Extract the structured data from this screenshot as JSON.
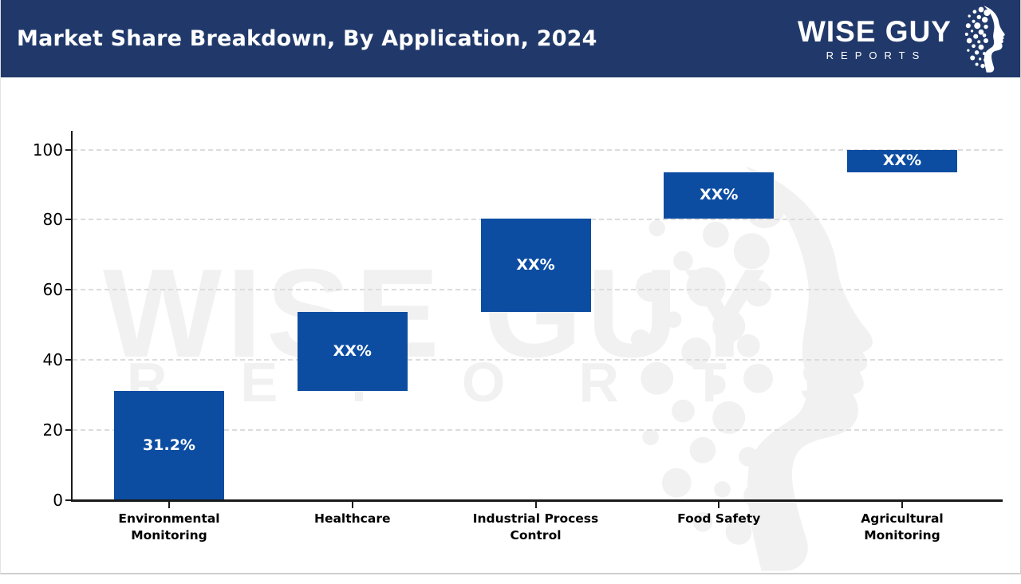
{
  "header": {
    "title": "Market Share Breakdown, By Application, 2024",
    "logo": {
      "wordmark": "WISE GUY",
      "subtext": "REPORTS"
    }
  },
  "watermark": {
    "wordmark": "WISE GUY",
    "subtext": "REPORTS"
  },
  "chart_data": {
    "type": "bar",
    "variant": "waterfall",
    "title": "Market Share Breakdown, By Application, 2024",
    "categories": [
      "Environmental\nMonitoring",
      "Healthcare",
      "Industrial Process\nControl",
      "Food Safety",
      "Agricultural\nMonitoring"
    ],
    "series": [
      {
        "name": "Market Share",
        "segments": [
          {
            "category": "Environmental Monitoring",
            "start": 0,
            "end": 31.2,
            "label": "31.2%"
          },
          {
            "category": "Healthcare",
            "start": 31.2,
            "end": 53.6,
            "label": "XX%"
          },
          {
            "category": "Industrial Process Control",
            "start": 53.6,
            "end": 80.3,
            "label": "XX%"
          },
          {
            "category": "Food Safety",
            "start": 80.3,
            "end": 93.6,
            "label": "XX%"
          },
          {
            "category": "Agricultural Monitoring",
            "start": 93.6,
            "end": 100,
            "label": "XX%"
          }
        ]
      }
    ],
    "yticks": [
      0,
      20,
      40,
      60,
      80,
      100
    ],
    "ylim": [
      0,
      105
    ],
    "grid": "horizontal-dashed",
    "legend": "none",
    "colors": {
      "bar": "#0c4da2",
      "bar_label": "#ffffff",
      "header_bg": "#21396a",
      "grid": "#dcdcdc",
      "axis": "#1a1a1a",
      "watermark": "#f1f1f1"
    }
  }
}
